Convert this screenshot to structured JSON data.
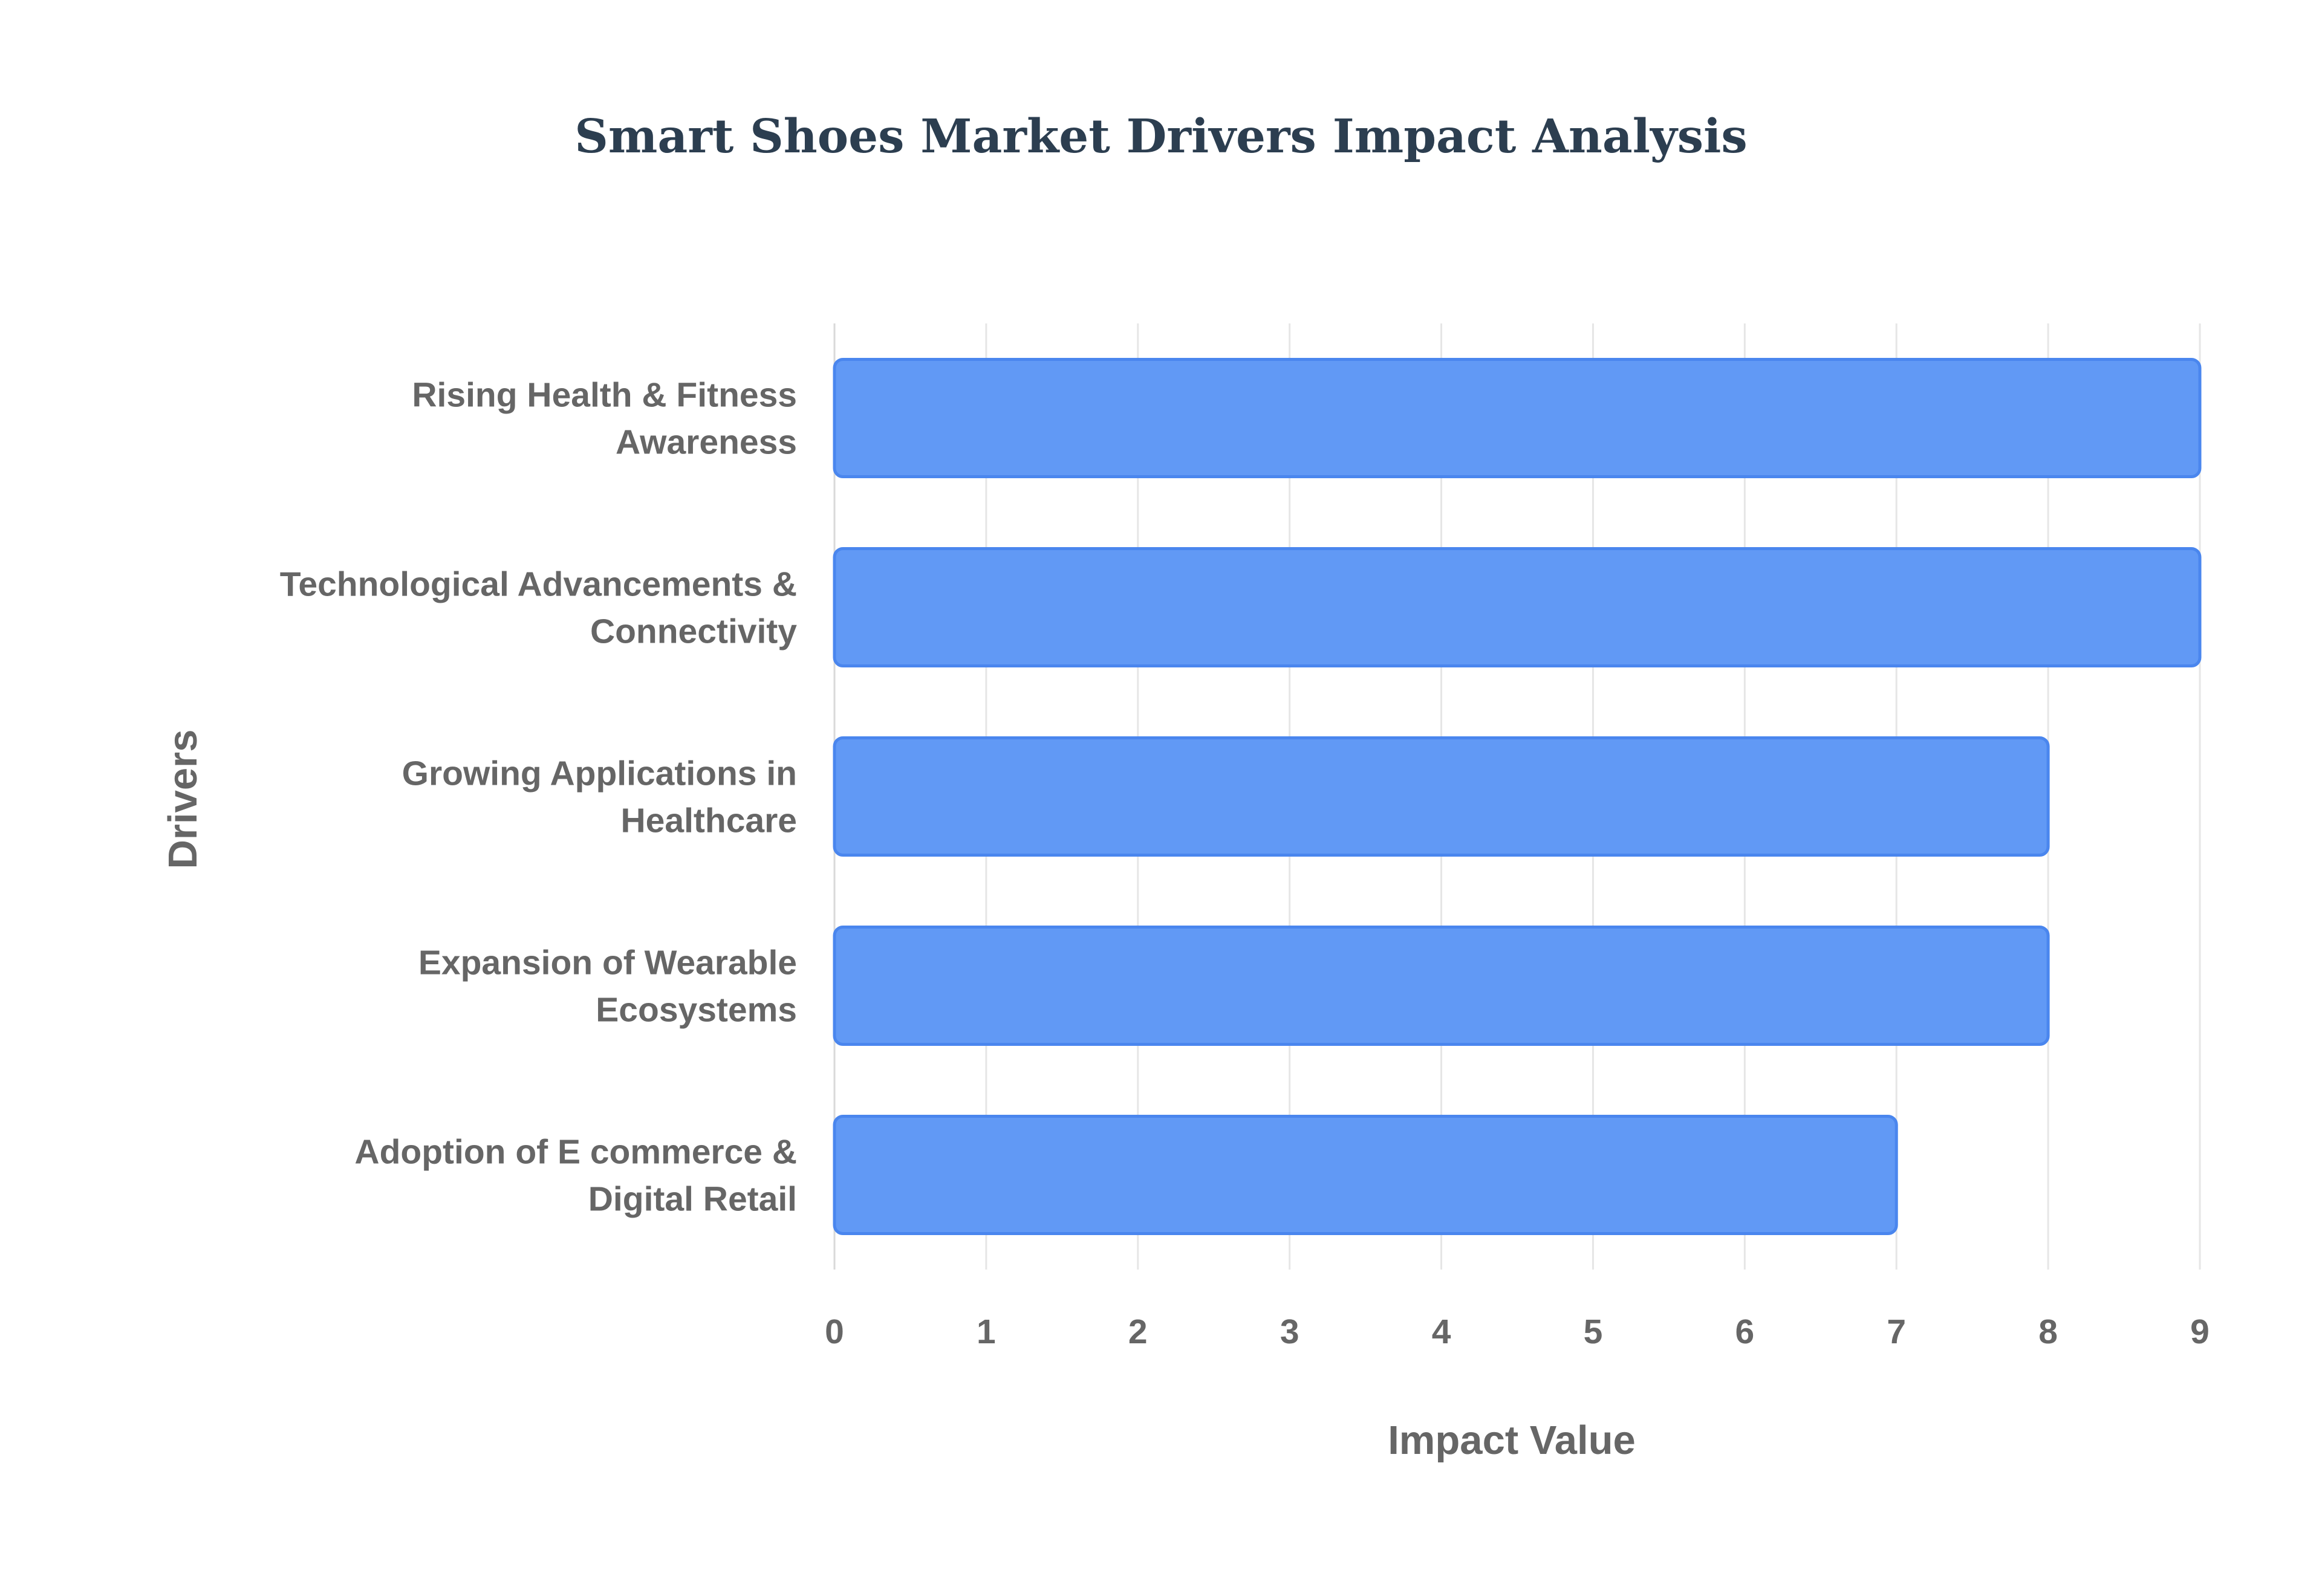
{
  "chart_data": {
    "type": "bar",
    "orientation": "horizontal",
    "title": "Smart Shoes Market Drivers Impact Analysis",
    "xlabel": "Impact Value",
    "ylabel": "Drivers",
    "categories": [
      [
        "Rising Health & Fitness",
        "Awareness"
      ],
      [
        "Technological Advancements &",
        "Connectivity"
      ],
      [
        "Growing Applications in",
        "Healthcare"
      ],
      [
        "Expansion of Wearable",
        "Ecosystems"
      ],
      [
        "Adoption of E commerce &",
        "Digital Retail"
      ]
    ],
    "values": [
      9,
      9,
      8,
      8,
      7
    ],
    "xlim": [
      0,
      9
    ],
    "xticks": [
      0,
      1,
      2,
      3,
      4,
      5,
      6,
      7,
      8,
      9
    ],
    "grid": true,
    "legend": "none",
    "colors": {
      "bar_fill": "#6199f5",
      "bar_stroke": "#4a86ee",
      "title": "#2c3e50",
      "label": "#666666",
      "grid": "#e6e6e6"
    }
  }
}
